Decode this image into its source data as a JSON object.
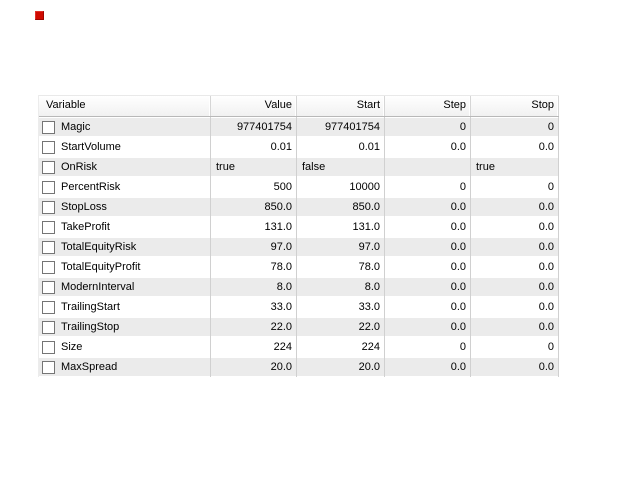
{
  "marker": {
    "name": "record-indicator",
    "color": "#cf0a00"
  },
  "colors": {
    "row_stripe": "#ebebeb",
    "grid_line": "#d0d0d0",
    "header_border": "#b8b8b8",
    "text": "#000000",
    "background": "#ffffff"
  },
  "table": {
    "columns": [
      {
        "key": "variable",
        "label": "Variable",
        "align": "left"
      },
      {
        "key": "value",
        "label": "Value",
        "align": "right"
      },
      {
        "key": "start",
        "label": "Start",
        "align": "right"
      },
      {
        "key": "step",
        "label": "Step",
        "align": "right"
      },
      {
        "key": "stop",
        "label": "Stop",
        "align": "right"
      }
    ],
    "rows": [
      {
        "checked": false,
        "variable": "Magic",
        "value": "977401754",
        "start": "977401754",
        "step": "0",
        "stop": "0"
      },
      {
        "checked": false,
        "variable": "StartVolume",
        "value": "0.01",
        "start": "0.01",
        "step": "0.0",
        "stop": "0.0"
      },
      {
        "checked": false,
        "variable": "OnRisk",
        "value": "true",
        "start": "false",
        "step": "",
        "stop": "true"
      },
      {
        "checked": false,
        "variable": "PercentRisk",
        "value": "500",
        "start": "10000",
        "step": "0",
        "stop": "0"
      },
      {
        "checked": false,
        "variable": "StopLoss",
        "value": "850.0",
        "start": "850.0",
        "step": "0.0",
        "stop": "0.0"
      },
      {
        "checked": false,
        "variable": "TakeProfit",
        "value": "131.0",
        "start": "131.0",
        "step": "0.0",
        "stop": "0.0"
      },
      {
        "checked": false,
        "variable": "TotalEquityRisk",
        "value": "97.0",
        "start": "97.0",
        "step": "0.0",
        "stop": "0.0"
      },
      {
        "checked": false,
        "variable": "TotalEquityProfit",
        "value": "78.0",
        "start": "78.0",
        "step": "0.0",
        "stop": "0.0"
      },
      {
        "checked": false,
        "variable": "ModernInterval",
        "value": "8.0",
        "start": "8.0",
        "step": "0.0",
        "stop": "0.0"
      },
      {
        "checked": false,
        "variable": "TrailingStart",
        "value": "33.0",
        "start": "33.0",
        "step": "0.0",
        "stop": "0.0"
      },
      {
        "checked": false,
        "variable": "TrailingStop",
        "value": "22.0",
        "start": "22.0",
        "step": "0.0",
        "stop": "0.0"
      },
      {
        "checked": false,
        "variable": "Size",
        "value": "224",
        "start": "224",
        "step": "0",
        "stop": "0"
      },
      {
        "checked": false,
        "variable": "MaxSpread",
        "value": "20.0",
        "start": "20.0",
        "step": "0.0",
        "stop": "0.0"
      }
    ]
  }
}
